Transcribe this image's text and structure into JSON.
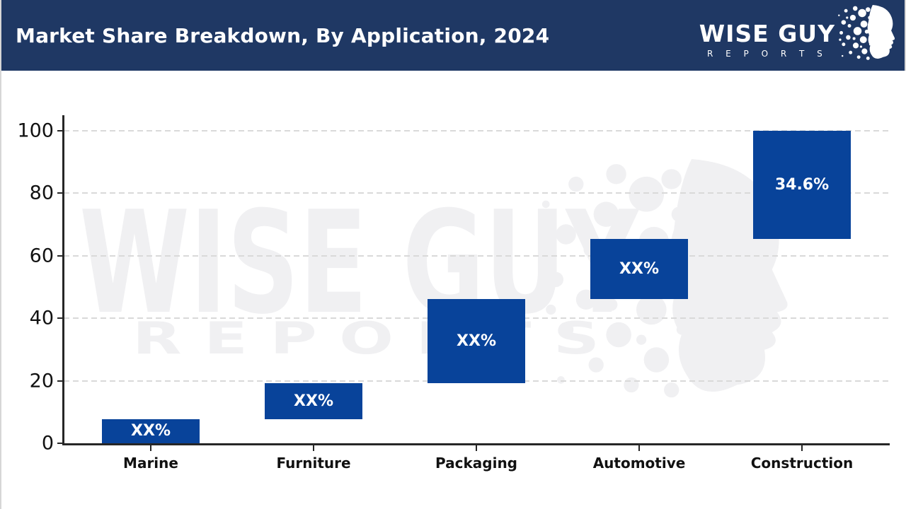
{
  "header": {
    "title": "Market Share Breakdown, By Application, 2024",
    "logo": {
      "line1": "WISE GUY",
      "line2": "R E P O R T S"
    }
  },
  "watermark": {
    "line1": "WISE GUY",
    "line2": "R E P O R T S"
  },
  "colors": {
    "header_bg": "#1f3864",
    "bar": "#08439a",
    "axis": "#262626",
    "grid": "#d9d9d9",
    "tick_label": "#111111",
    "bar_label": "#ffffff",
    "watermark": "#f0f0f2"
  },
  "chart_data": {
    "type": "bar",
    "subtype": "waterfall",
    "title": "Market Share Breakdown, By Application, 2024",
    "categories": [
      "Marine",
      "Furniture",
      "Packaging",
      "Automotive",
      "Construction"
    ],
    "segments": [
      {
        "category": "Marine",
        "start": 0,
        "end": 7.7,
        "label": "XX%"
      },
      {
        "category": "Furniture",
        "start": 7.7,
        "end": 19.3,
        "label": "XX%"
      },
      {
        "category": "Packaging",
        "start": 19.3,
        "end": 46.2,
        "label": "XX%"
      },
      {
        "category": "Automotive",
        "start": 46.2,
        "end": 65.4,
        "label": "XX%"
      },
      {
        "category": "Construction",
        "start": 65.4,
        "end": 100,
        "label": "34.6%",
        "value": 34.6
      }
    ],
    "ylim": [
      0,
      100
    ],
    "yticks": [
      0,
      20,
      40,
      60,
      80,
      100
    ],
    "xlabel": "",
    "ylabel": "",
    "grid": "dashed-horizontal",
    "legend": "none"
  }
}
